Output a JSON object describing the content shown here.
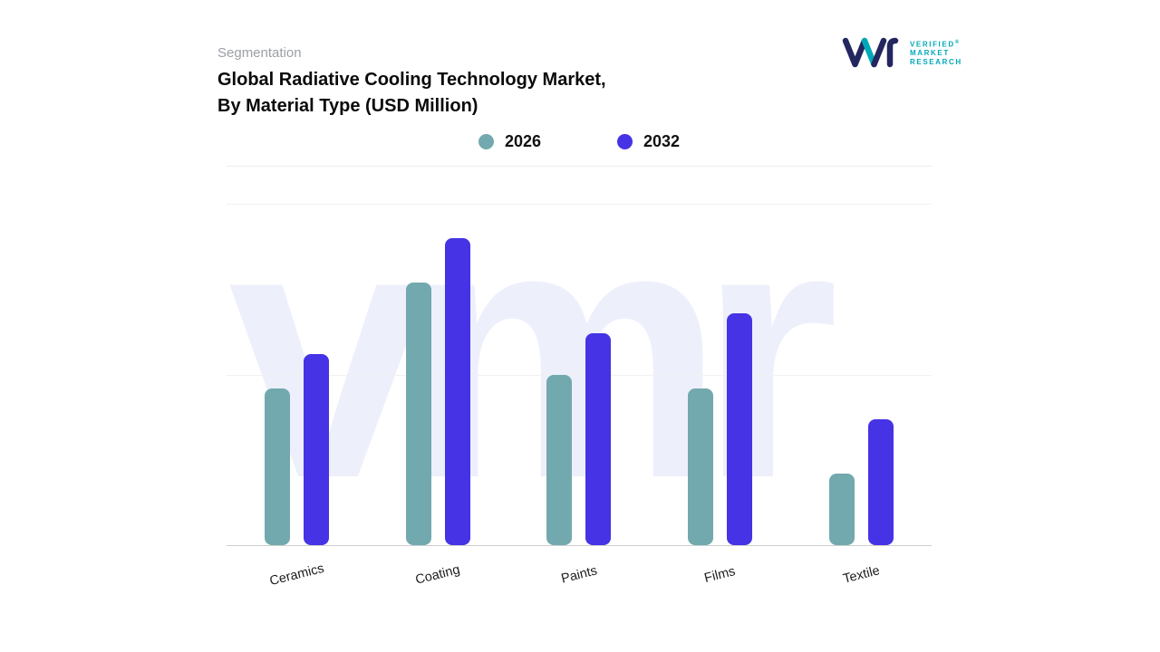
{
  "header": {
    "eyebrow": "Segmentation",
    "title_line1": "Global Radiative Cooling Technology Market,",
    "title_line2": "By Material Type (USD Million)"
  },
  "logo": {
    "lines": [
      "VERIFIED",
      "MARKET",
      "RESEARCH"
    ],
    "registered": "®",
    "mark_color_primary": "#23265F",
    "mark_color_accent": "#00A9B7",
    "text_color": "#00A9B7"
  },
  "watermark": "vmr",
  "legend": [
    {
      "label": "2026",
      "color": "#72A9AE"
    },
    {
      "label": "2032",
      "color": "#4533E5"
    }
  ],
  "chart_data": {
    "type": "bar",
    "title": "Global Radiative Cooling Technology Market, By Material Type (USD Million)",
    "categories": [
      "Ceramics",
      "Coating",
      "Paints",
      "Films",
      "Textile"
    ],
    "series": [
      {
        "name": "2026",
        "color": "#72A9AE",
        "values": [
          46,
          77,
          50,
          46,
          21
        ]
      },
      {
        "name": "2032",
        "color": "#4533E5",
        "values": [
          56,
          90,
          62,
          68,
          37
        ]
      }
    ],
    "xlabel": "",
    "ylabel": "",
    "ylim": [
      0,
      100
    ],
    "values_scale": "percent of plot height; chart shows no numeric axis tick labels",
    "grid": "horizontal-light",
    "legend_position": "top-center",
    "bar_style": "rounded"
  }
}
